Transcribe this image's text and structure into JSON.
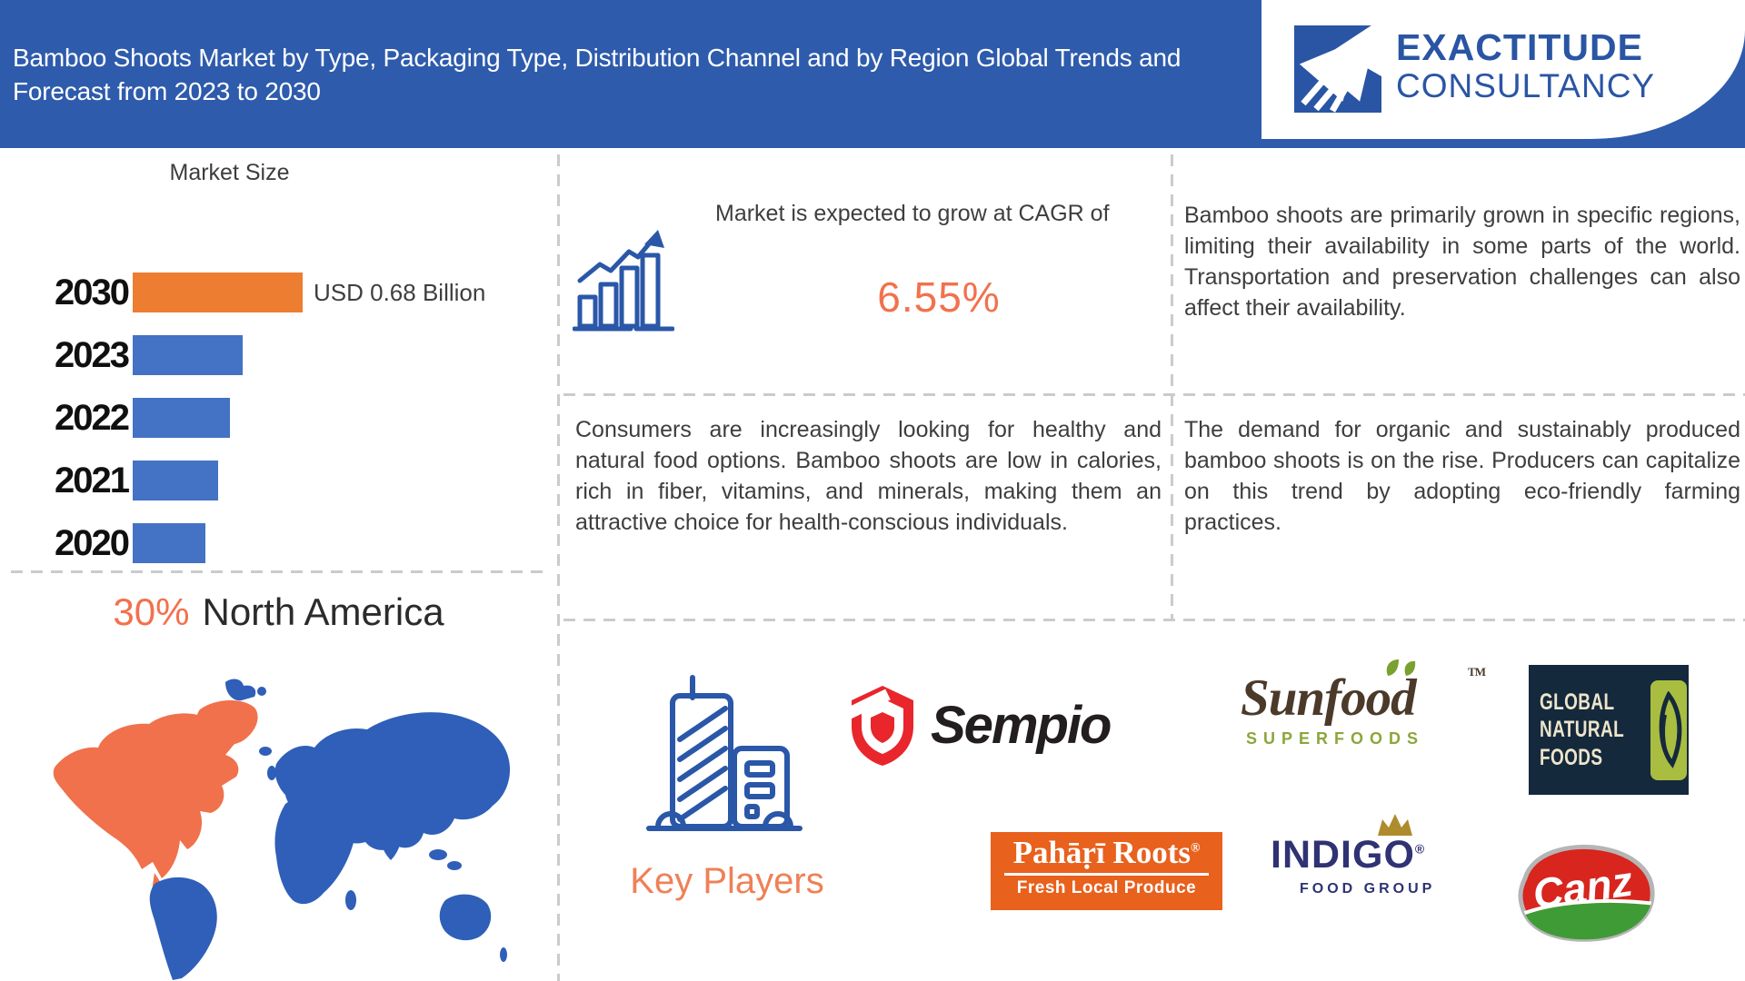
{
  "header": {
    "title": "Bamboo Shoots Market by Type, Packaging Type, Distribution Channel and by Region Global Trends and Forecast from 2023 to 2030",
    "logo": {
      "exactitude": "EXACTITUDE",
      "consultancy": "CONSULTANCY"
    }
  },
  "market_size": {
    "title": "Market Size"
  },
  "chart_data": {
    "type": "bar",
    "orientation": "horizontal",
    "title": "Market Size",
    "unit": "USD Billion",
    "categories": [
      "2030",
      "2023",
      "2022",
      "2021",
      "2020"
    ],
    "values": [
      0.68,
      0.44,
      0.39,
      0.34,
      0.29
    ],
    "value_labels": [
      "USD 0.68 Billion",
      "",
      "",
      "",
      ""
    ],
    "bar_colors": [
      "#ED7D31",
      "#4472C4",
      "#4472C4",
      "#4472C4",
      "#4472C4"
    ],
    "xlim": [
      0,
      0.75
    ],
    "grid": false,
    "note": "2030 value labeled on chart; 2020-2023 bar values estimated from bar lengths"
  },
  "growth": {
    "lead": "Market is expected to grow at CAGR of",
    "cagr": "6.55%"
  },
  "insights": {
    "availability": "Bamboo shoots are primarily grown in specific regions, limiting their availability in some parts of the world. Transportation and preservation challenges can also affect their availability.",
    "consumers": "Consumers are increasingly looking for healthy and natural food options. Bamboo shoots are low in calories, rich in fiber, vitamins, and minerals, making them an attractive choice for health-conscious individuals.",
    "organic": "The demand for organic and sustainably produced bamboo shoots is on the rise. Producers can capitalize on this trend by adopting eco-friendly farming practices."
  },
  "region": {
    "share": "30%",
    "name": "North America"
  },
  "players": {
    "heading": "Key Players",
    "sempio": {
      "name": "Sempio"
    },
    "sunfood": {
      "name": "Sunfood",
      "tm": "TM",
      "sub": "SUPERFOODS"
    },
    "gnf": {
      "lines": [
        "GLOBAL",
        "NATURAL",
        "FOODS"
      ]
    },
    "pahari": {
      "name": "Pahāṛī Roots",
      "reg": "®",
      "tagline": "Fresh Local Produce"
    },
    "indigo": {
      "name": "INDIGO",
      "reg": "®",
      "sub": "FOOD GROUP"
    },
    "canz": {
      "name": "Canz"
    }
  },
  "colors": {
    "header_blue": "#2E5BAC",
    "bar_blue": "#4472C4",
    "bar_orange": "#ED7D31",
    "accent_orange": "#F2714D",
    "players_orange": "#F08057",
    "map_orange": "#F0714B",
    "map_blue": "#2F5FB8",
    "text_dark": "#3E3E3E",
    "dash_gray": "#CBCBCB",
    "logo_blue": "#2A55A4",
    "sempio_red": "#E8262C",
    "sunfood_brown": "#4B3A2A",
    "sunfood_green": "#8CA63B",
    "gnf_navy": "#15293D",
    "gnf_green": "#A9BE41",
    "gnf_cream": "#EDE5CA",
    "pahari_orange": "#E8611D",
    "indigo_navy": "#2F3273",
    "indigo_gold": "#AE8B2D",
    "canz_red": "#D8251D",
    "canz_green": "#3F9B35"
  }
}
